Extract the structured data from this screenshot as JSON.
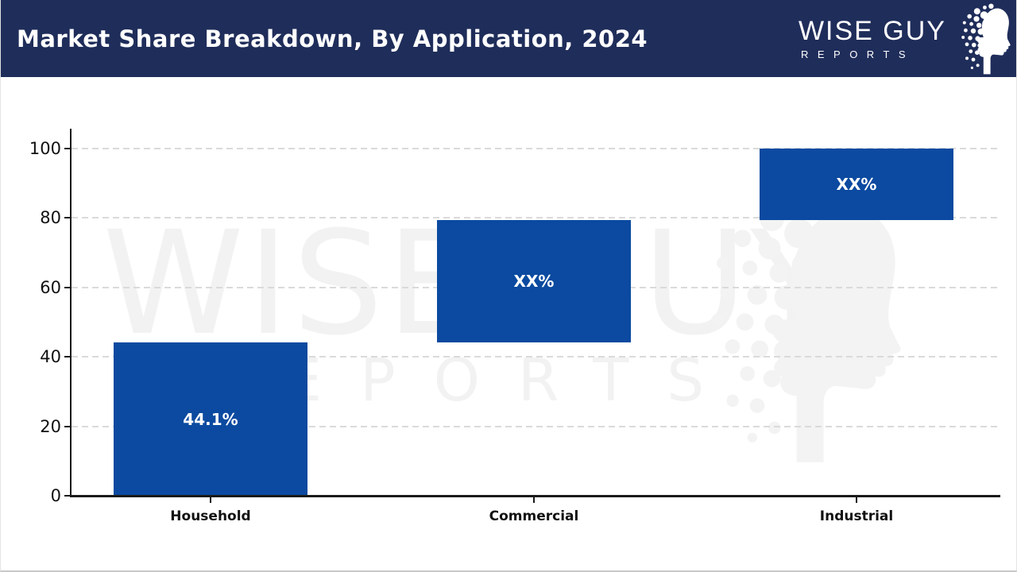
{
  "header": {
    "title": "Market Share Breakdown, By Application, 2024",
    "logo": {
      "line1": "WISE GUY",
      "line2": "REPORTS"
    }
  },
  "watermark": {
    "line1": "WISE GUY",
    "line2": "REPORTS"
  },
  "colors": {
    "header_bg": "#1f2d5a",
    "bar_blue": "#0b4aa0",
    "gridline_gray": "#dadada",
    "watermark_gray": "#f2f2f2",
    "axis_black": "#1a1a1a",
    "label_white": "#ffffff"
  },
  "chart_data": {
    "type": "bar",
    "subtype": "waterfall",
    "title": "Market Share Breakdown, By Application, 2024",
    "categories": [
      "Household",
      "Commercial",
      "Industrial"
    ],
    "segments": [
      {
        "category": "Household",
        "start": 0,
        "end": 44.1,
        "label": "44.1%"
      },
      {
        "category": "Commercial",
        "start": 44.1,
        "end": 79.4,
        "label": "XX%"
      },
      {
        "category": "Industrial",
        "start": 79.4,
        "end": 100,
        "label": "XX%"
      }
    ],
    "xlabel": "",
    "ylabel": "",
    "ylim": [
      0,
      100
    ],
    "yticks": [
      0,
      20,
      40,
      60,
      80,
      100
    ],
    "grid": "horizontal-dashed",
    "legend": "none"
  }
}
